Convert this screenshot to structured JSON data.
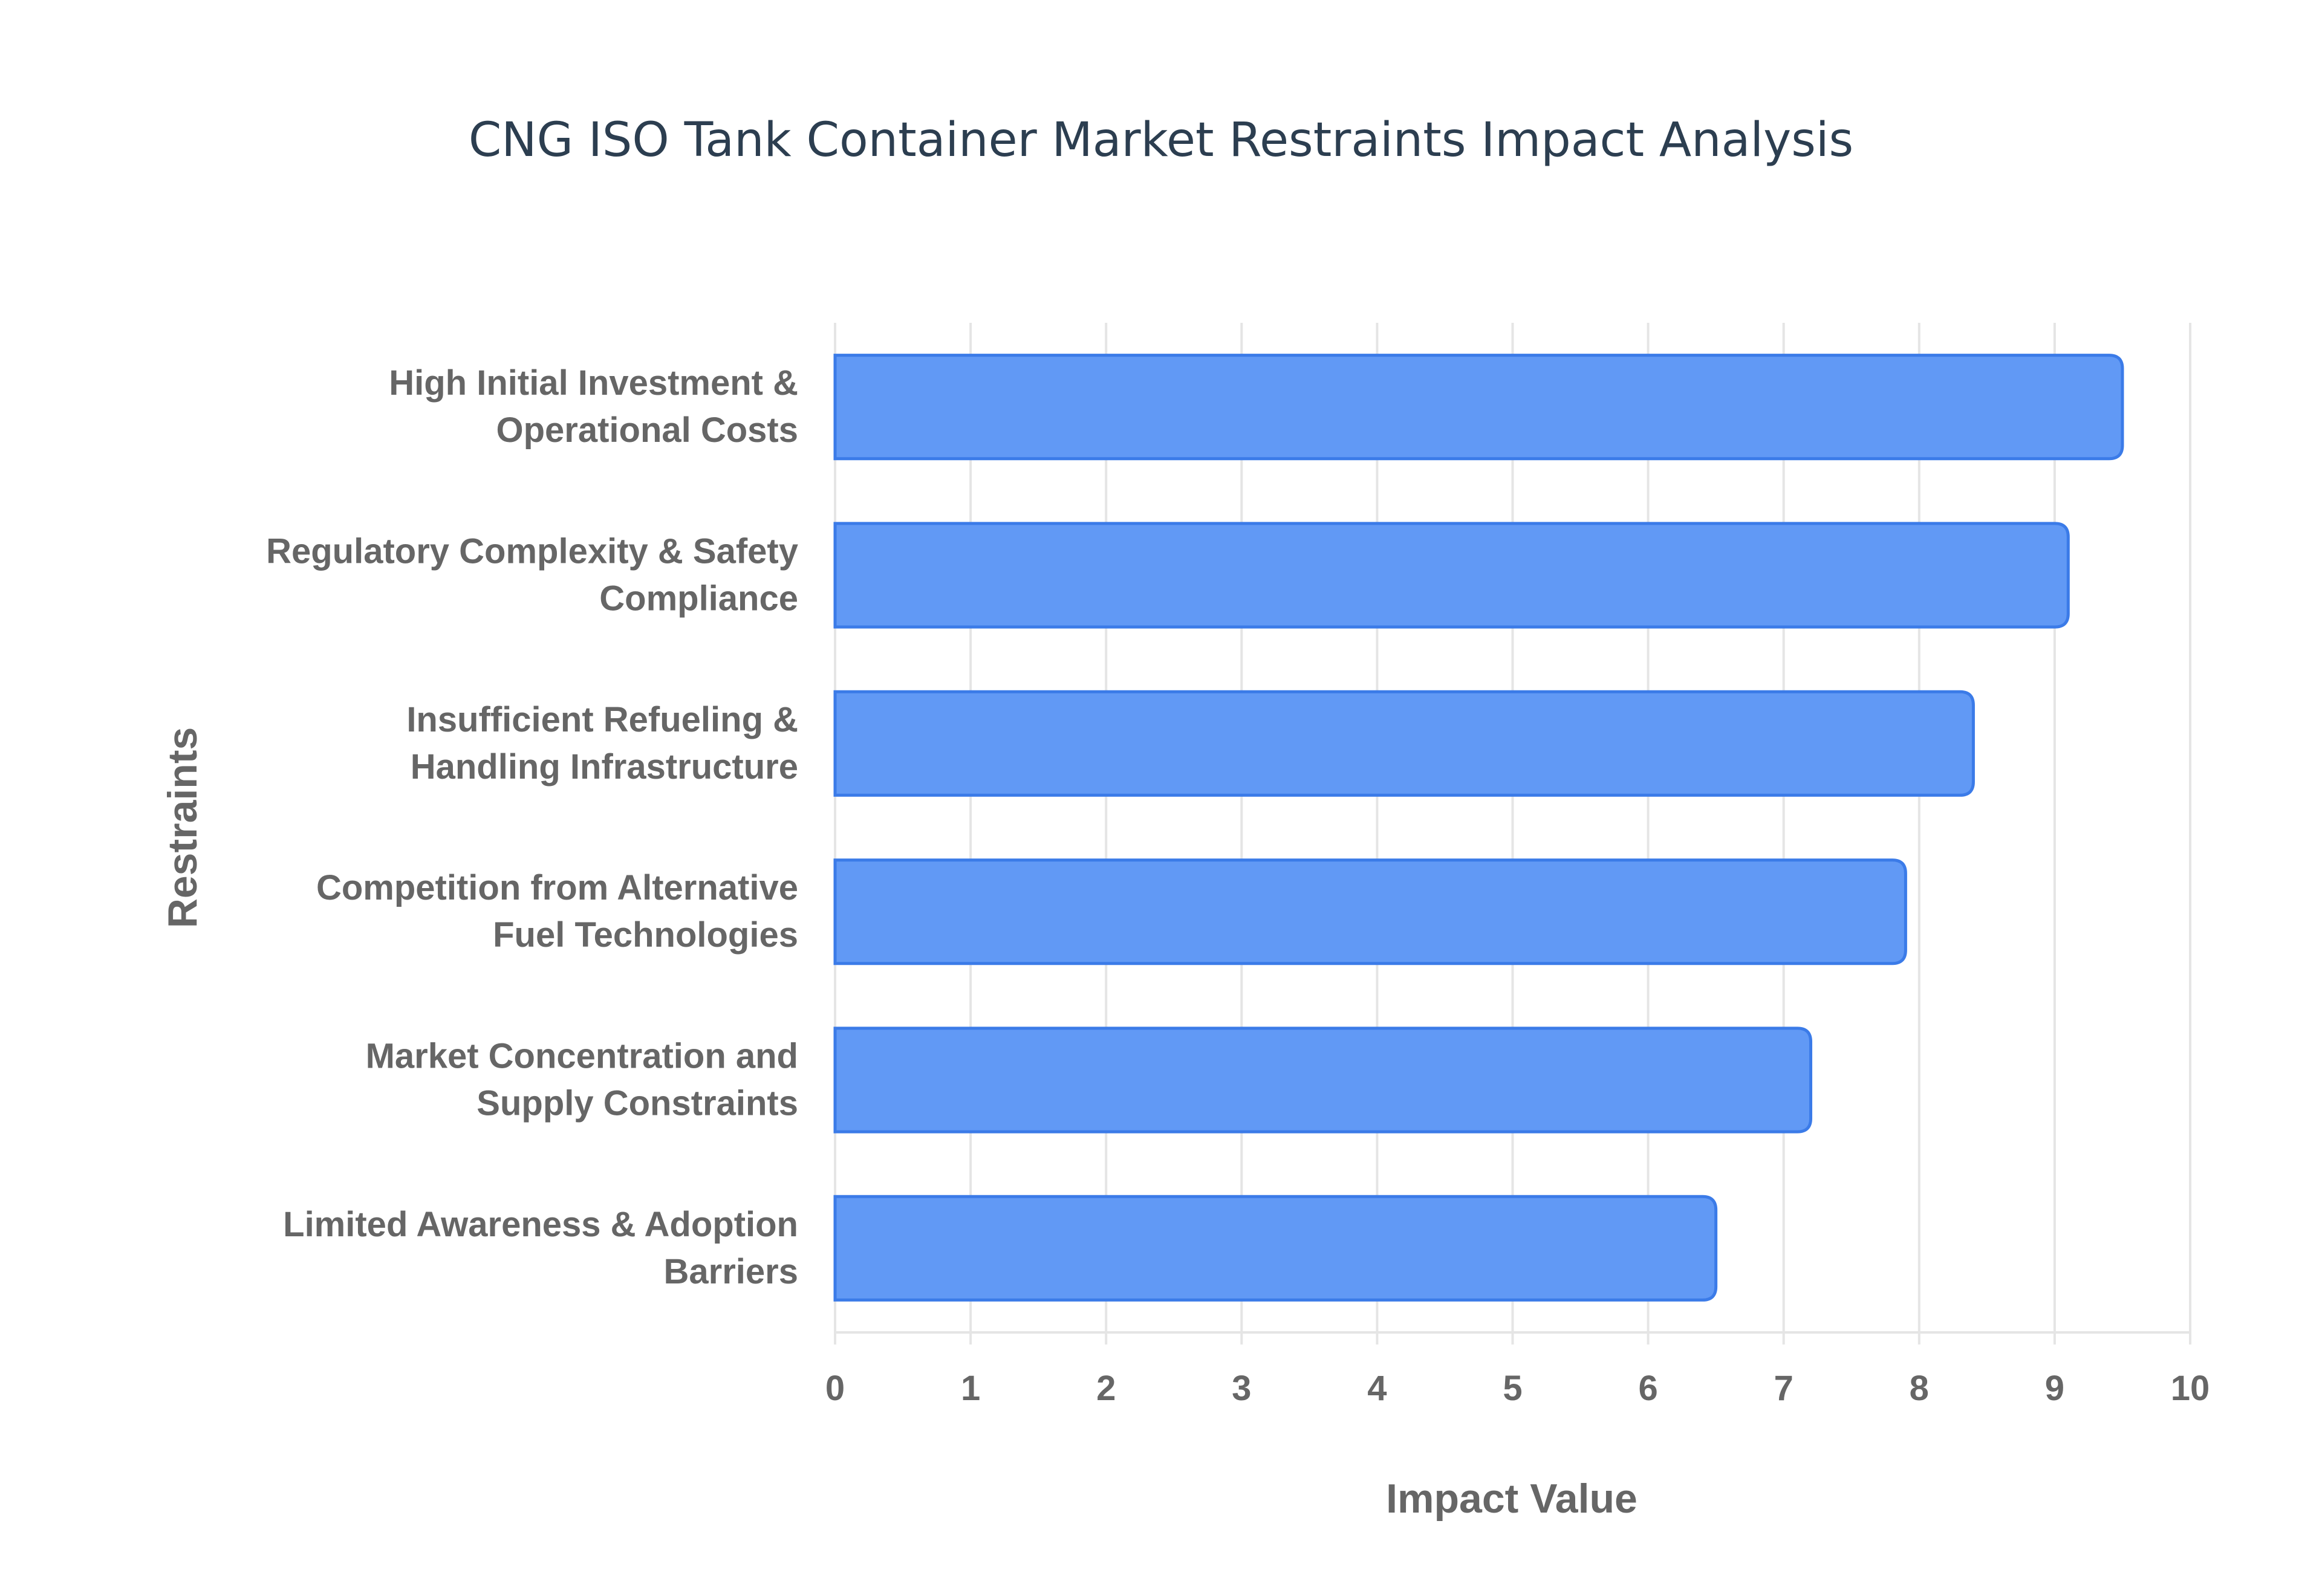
{
  "chart_data": {
    "type": "bar",
    "orientation": "horizontal",
    "title": "CNG ISO Tank Container Market Restraints Impact Analysis",
    "xlabel": "Impact Value",
    "ylabel": "Restraints",
    "categories": [
      [
        "High Initial Investment &",
        "Operational Costs"
      ],
      [
        "Regulatory Complexity & Safety",
        "Compliance"
      ],
      [
        "Insufficient Refueling &",
        "Handling Infrastructure"
      ],
      [
        "Competition from Alternative",
        "Fuel Technologies"
      ],
      [
        "Market Concentration and",
        "Supply Constraints"
      ],
      [
        "Limited Awareness & Adoption",
        "Barriers"
      ]
    ],
    "values": [
      9.5,
      9.1,
      8.4,
      7.9,
      7.2,
      6.5
    ],
    "xlim": [
      0,
      10
    ],
    "xticks": [
      "0",
      "1",
      "2",
      "3",
      "4",
      "5",
      "6",
      "7",
      "8",
      "9",
      "10"
    ],
    "grid": true,
    "legend": "none",
    "colors": {
      "bar_fill": "#6199f5",
      "bar_border": "#3b7be8",
      "grid": "#e5e5e5",
      "title": "#2c3e50",
      "text": "#666666"
    }
  }
}
